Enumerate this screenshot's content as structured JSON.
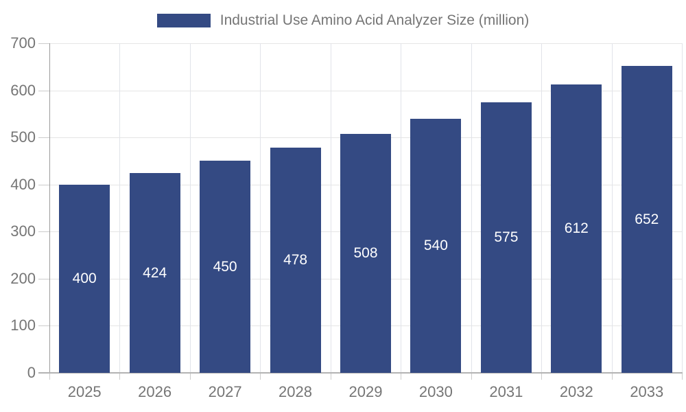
{
  "legend": {
    "label": "Industrial Use Amino Acid Analyzer Size (million)"
  },
  "chart_data": {
    "type": "bar",
    "title": "Industrial Use Amino Acid Analyzer Size (million)",
    "categories": [
      "2025",
      "2026",
      "2027",
      "2028",
      "2029",
      "2030",
      "2031",
      "2032",
      "2033"
    ],
    "values": [
      400,
      424,
      450,
      478,
      508,
      540,
      575,
      612,
      652
    ],
    "series": [
      {
        "name": "Industrial Use Amino Acid Analyzer Size (million)",
        "values": [
          400,
          424,
          450,
          478,
          508,
          540,
          575,
          612,
          652
        ]
      }
    ],
    "xlabel": "",
    "ylabel": "",
    "ylim": [
      0,
      700
    ],
    "yticks": [
      0,
      100,
      200,
      300,
      400,
      500,
      600,
      700
    ],
    "grid": true,
    "legend_position": "top-center",
    "value_label_position": "inside-center",
    "colors": {
      "bar": "#344a83",
      "axis_text": "#757575",
      "value_text": "#ffffff",
      "grid_h": "#e5e5e5",
      "grid_v": "#e1e3e9",
      "axis_line_y": "#9a9a9a",
      "axis_line_x": "#b3b3b3"
    }
  }
}
